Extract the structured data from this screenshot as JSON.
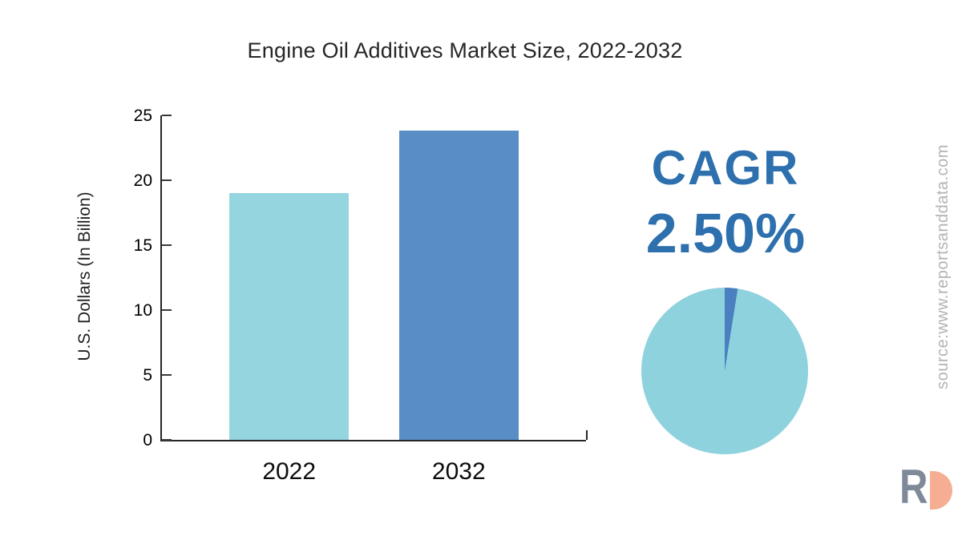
{
  "title": "Engine Oil Additives Market Size, 2022-2032",
  "watermark": {
    "source_text": "source:www.reportsanddata.com"
  },
  "logo": {
    "letter": "R",
    "letter_color": "#7f8a99",
    "accent_color": "#f5ae93"
  },
  "cagr": {
    "label": "CAGR",
    "value": "2.50%",
    "color": "#2d70ad"
  },
  "chart_data": [
    {
      "type": "bar",
      "title": "Engine Oil Additives Market Size, 2022-2032",
      "categories": [
        "2022",
        "2032"
      ],
      "values": [
        19.0,
        23.8
      ],
      "bar_colors": [
        "#95d5e0",
        "#598dc5"
      ],
      "xlabel": "",
      "ylabel": "U.S. Dollars (In Billion)",
      "ylim": [
        0,
        25
      ],
      "yticks": [
        0,
        5,
        10,
        15,
        20,
        25
      ],
      "grid": false,
      "legend": "none"
    },
    {
      "type": "pie",
      "title": "CAGR 2.50%",
      "start_angle_deg": 0,
      "direction": "clockwise",
      "slices": [
        {
          "label": "CAGR",
          "value": 2.5,
          "color": "#4a7fc0"
        },
        {
          "label": "remainder",
          "value": 97.5,
          "color": "#8ed2de"
        }
      ]
    }
  ]
}
